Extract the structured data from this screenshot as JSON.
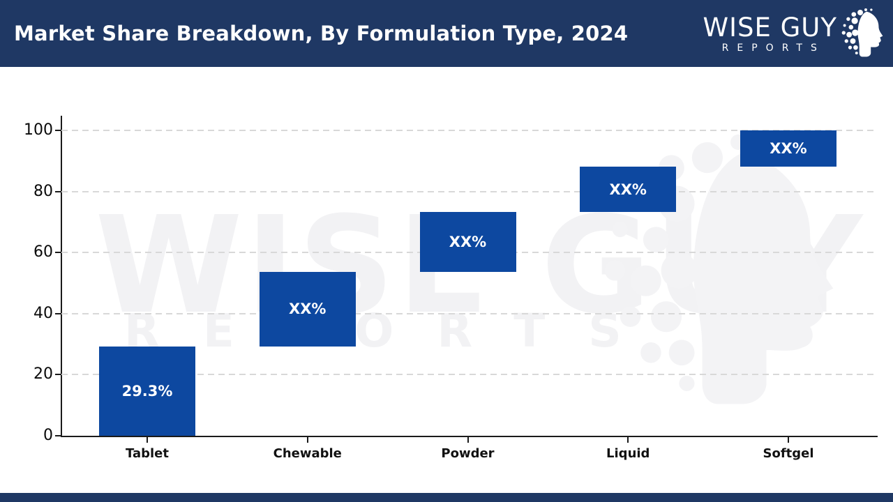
{
  "header": {
    "title": "Market Share Breakdown, By Formulation Type, 2024",
    "bg_color": "#1f3864",
    "logo": {
      "name": "WISE GUY",
      "subname": "REPORTS"
    }
  },
  "watermark": {
    "line1": "WISE GUY",
    "line2": "REPORTS"
  },
  "chart_data": {
    "type": "bar",
    "subtype": "waterfall",
    "title": "Market Share Breakdown, By Formulation Type, 2024",
    "categories": [
      "Tablet",
      "Chewable",
      "Powder",
      "Liquid",
      "Softgel"
    ],
    "segments": [
      {
        "category": "Tablet",
        "start": 0,
        "end": 29.3,
        "label": "29.3%"
      },
      {
        "category": "Chewable",
        "start": 29.3,
        "end": 53.7,
        "label": "XX%"
      },
      {
        "category": "Powder",
        "start": 53.7,
        "end": 73.3,
        "label": "XX%"
      },
      {
        "category": "Liquid",
        "start": 73.3,
        "end": 88.1,
        "label": "XX%"
      },
      {
        "category": "Softgel",
        "start": 88.1,
        "end": 100,
        "label": "XX%"
      }
    ],
    "yticks": [
      0,
      20,
      40,
      60,
      80,
      100
    ],
    "ylim": [
      0,
      105
    ],
    "grid": "horizontal-dashed",
    "legend": "none",
    "colors": {
      "bar": "#0d48a0",
      "bar_label": "#ffffff",
      "grid": "#d8d8d8",
      "axis": "#1a1a1a",
      "tick_label": "#0a0a0a"
    }
  },
  "footer": {
    "bg_color": "#1f3864"
  }
}
